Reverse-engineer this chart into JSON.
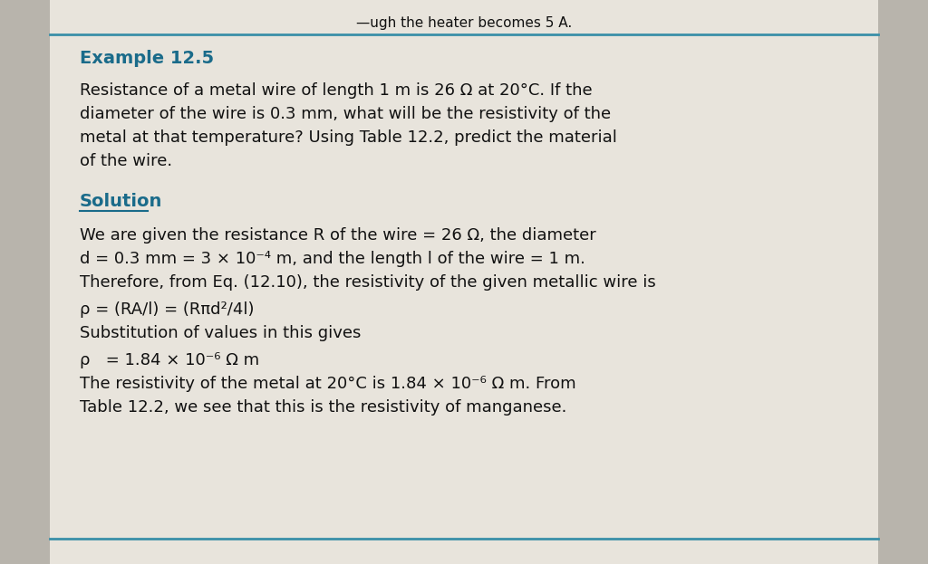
{
  "bg_color": "#b8b4ac",
  "page_color": "#e8e4dc",
  "box_bg_color": "#e0ddd6",
  "teal_line_color": "#3a8fa8",
  "title": "Example 12.5",
  "title_color": "#1a6b8a",
  "solution_label": "Solution",
  "solution_color": "#1a6b8a",
  "body_color": "#111111",
  "top_partial_text": "—ugh the heater becomes 5 A.",
  "question_lines": [
    "Resistance of a metal wire of length 1 m is 26 Ω at 20°C. If the",
    "diameter of the wire is 0.3 mm, what will be the resistivity of the",
    "metal at that temperature? Using Table 12.2, predict the material",
    "of the wire."
  ],
  "solution_lines": [
    "We are given the resistance R of the wire = 26 Ω, the diameter",
    "d = 0.3 mm = 3 × 10⁻⁴ m, and the length l of the wire = 1 m.",
    "Therefore, from Eq. (12.10), the resistivity of the given metallic wire is",
    "ρ = (RA/l) = (Rπd²/4l)",
    "Substitution of values in this gives",
    "ρ   = 1.84 × 10⁻⁶ Ω m",
    "The resistivity of the metal at 20°C is 1.84 × 10⁻⁶ Ω m. From",
    "Table 12.2, we see that this is the resistivity of manganese."
  ],
  "figsize": [
    10.24,
    6.23
  ],
  "dpi": 100
}
